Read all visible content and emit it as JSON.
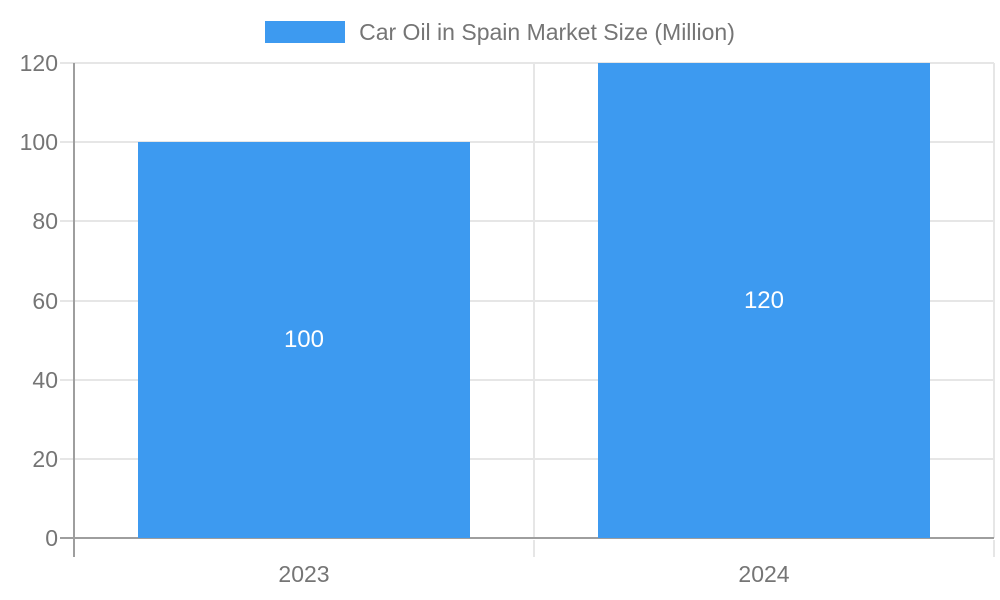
{
  "chart_data": {
    "type": "bar",
    "title": "Car Oil in Spain Market Size (Million)",
    "categories": [
      "2023",
      "2024"
    ],
    "series": [
      {
        "name": "Car Oil in Spain Market Size (Million)",
        "values": [
          100,
          120
        ]
      }
    ],
    "data_labels": [
      "100",
      "120"
    ],
    "xlabel": "",
    "ylabel": "",
    "ylim": [
      0,
      120
    ],
    "yticks": [
      0,
      20,
      40,
      60,
      80,
      100,
      120
    ],
    "grid": true,
    "legend_position": "top-center"
  },
  "style": {
    "background": "#FFFFFF",
    "bar_color": "#3D9AF0",
    "axis_color": "#9E9E9E",
    "grid_color": "#E6E6E6",
    "tick_label_color": "#757575",
    "legend_text_color": "#757575",
    "value_label_color": "#FFFFFF"
  }
}
